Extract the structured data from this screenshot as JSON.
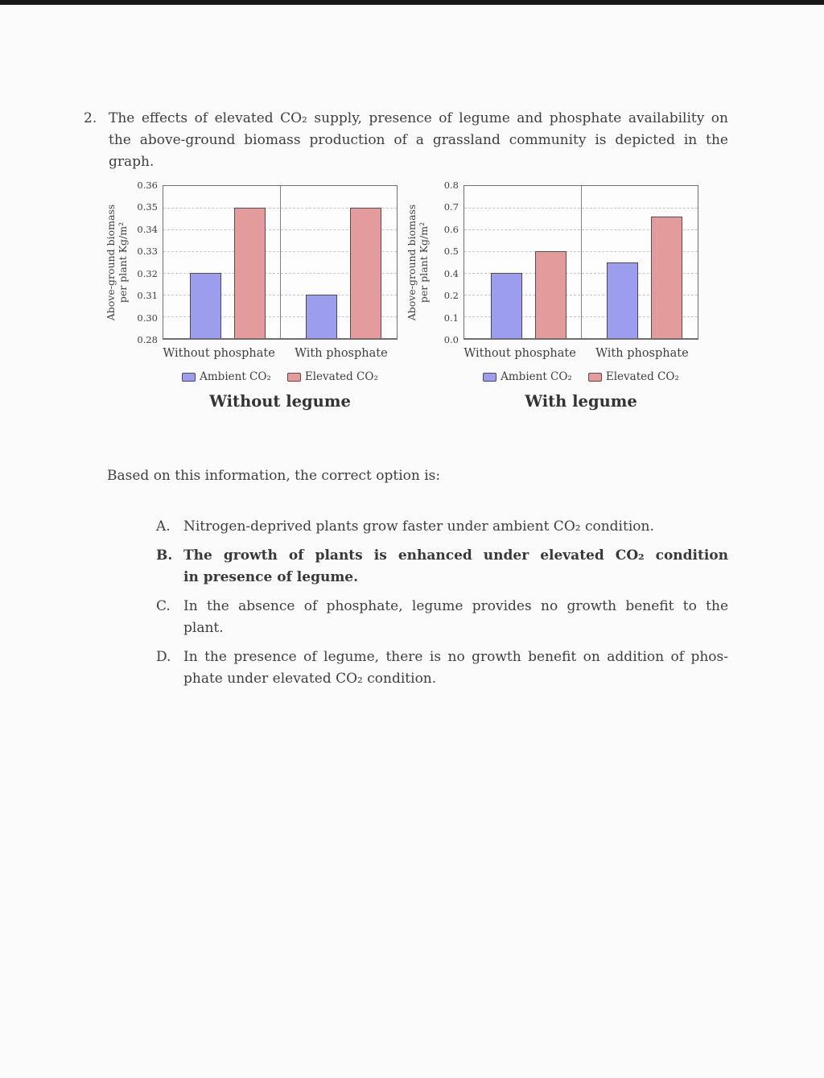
{
  "question": {
    "number": "2.",
    "lines": [
      "The effects of elevated CO₂ supply, presence of legume and phosphate availability on",
      "the above-ground biomass production of a grassland community is depicted in the",
      "graph."
    ]
  },
  "stem": "Based on this information, the correct option is:",
  "options": [
    {
      "letter": "A.",
      "bold": false,
      "lines": [
        "Nitrogen-deprived plants grow faster under ambient CO₂ condition."
      ]
    },
    {
      "letter": "B.",
      "bold": true,
      "lines": [
        "The growth of plants is enhanced under elevated CO₂ condition",
        "in presence of legume."
      ]
    },
    {
      "letter": "C.",
      "bold": false,
      "lines": [
        "In the absence of phosphate, legume provides no growth benefit to the",
        "plant."
      ]
    },
    {
      "letter": "D.",
      "bold": false,
      "lines": [
        "In the presence of legume, there is no growth benefit on addition of phos-",
        "phate under elevated CO₂ condition."
      ]
    }
  ],
  "colors": {
    "ambient_fill": "#9d9ded",
    "ambient_border": "#46466b",
    "elevated_fill": "#e39b9b",
    "elevated_border": "#6e4545"
  },
  "chart_data": [
    {
      "type": "bar",
      "title": "Without legume",
      "ylabel_lines": [
        "Above-ground biomass",
        "per plant Kg/m²"
      ],
      "ytick_labels_top_to_bottom": [
        "0.36",
        "0.35",
        "0.34",
        "0.33",
        "0.32",
        "0.31",
        "0.30",
        "0.28"
      ],
      "ytick_values_bottom_to_top": [
        0.28,
        0.3,
        0.31,
        0.32,
        0.33,
        0.34,
        0.35,
        0.36
      ],
      "ylim": [
        0.28,
        0.36
      ],
      "grid": "dashed horizontal",
      "legend_position": "below",
      "categories": [
        "Without phosphate",
        "With phosphate"
      ],
      "series": [
        {
          "name": "Ambient CO₂",
          "color": "#9d9ded",
          "border": "#46466b",
          "values": [
            0.32,
            0.31
          ]
        },
        {
          "name": "Elevated CO₂",
          "color": "#e39b9b",
          "border": "#6e4545",
          "values": [
            0.35,
            0.35
          ]
        }
      ]
    },
    {
      "type": "bar",
      "title": "With legume",
      "ylabel_lines": [
        "Above-ground biomass",
        "per plant Kg/m²"
      ],
      "ytick_labels_top_to_bottom": [
        "0.8",
        "0.7",
        "0.6",
        "0.5",
        "0.4",
        "0.2",
        "0.1",
        "0.0"
      ],
      "ytick_values_bottom_to_top": [
        0.0,
        0.1,
        0.2,
        0.4,
        0.5,
        0.6,
        0.7,
        0.8
      ],
      "ylim": [
        0.0,
        0.8
      ],
      "grid": "dashed horizontal",
      "legend_position": "below",
      "categories": [
        "Without phosphate",
        "With phosphate"
      ],
      "series": [
        {
          "name": "Ambient CO₂",
          "color": "#9d9ded",
          "border": "#46466b",
          "values": [
            0.4,
            0.45
          ]
        },
        {
          "name": "Elevated CO₂",
          "color": "#e39b9b",
          "border": "#6e4545",
          "values": [
            0.5,
            0.66
          ]
        }
      ]
    }
  ]
}
